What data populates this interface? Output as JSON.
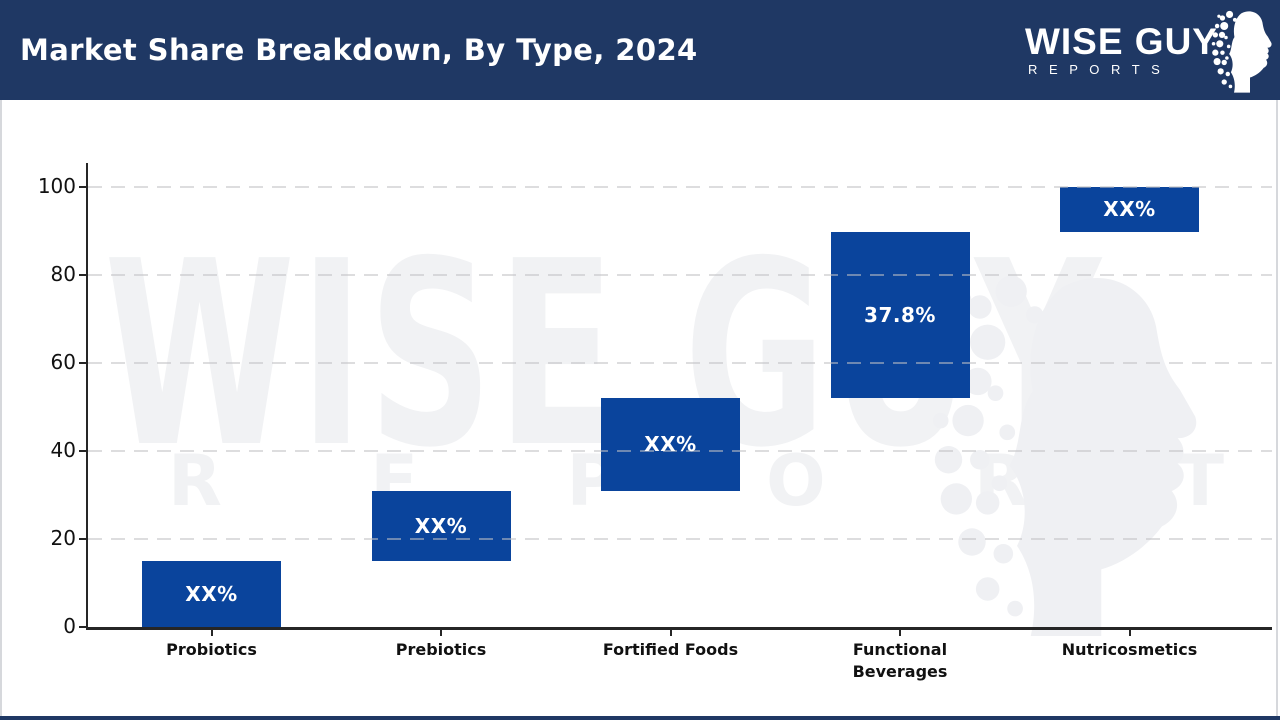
{
  "header": {
    "title": "Market Share Breakdown, By Type, 2024",
    "logo": {
      "line1": "WISE GUY",
      "line2": "R E P O R T S"
    }
  },
  "watermark": {
    "line1": "WISE GUY",
    "line2": "R E P O R T S"
  },
  "chart_data": {
    "type": "bar",
    "variant": "floating-segment-waterfall",
    "title": "Market Share Breakdown, By Type, 2024",
    "categories": [
      "Probiotics",
      "Prebiotics",
      "Fortified Foods",
      "Functional Beverages",
      "Nutricosmetics"
    ],
    "bars": [
      {
        "category": "Probiotics",
        "start": 0,
        "end": 15,
        "label": "XX%"
      },
      {
        "category": "Prebiotics",
        "start": 15,
        "end": 31,
        "label": "XX%"
      },
      {
        "category": "Fortified Foods",
        "start": 31,
        "end": 52,
        "label": "XX%"
      },
      {
        "category": "Functional Beverages",
        "start": 52,
        "end": 89.8,
        "label": "37.8%"
      },
      {
        "category": "Nutricosmetics",
        "start": 89.8,
        "end": 100,
        "label": "XX%"
      }
    ],
    "xlabel": "",
    "ylabel": "",
    "yticks": [
      0,
      20,
      40,
      60,
      80,
      100
    ],
    "ylim": [
      0,
      105
    ],
    "grid": "horizontal-dashed",
    "legend": "none",
    "bar_color": "#0a449c",
    "bar_label_color": "#ffffff"
  },
  "colors": {
    "header_bg": "#1f3864",
    "footer_bg": "#1f3864",
    "title_text": "#ffffff",
    "bar": "#0a449c",
    "axis": "#262626",
    "tick_label": "#111111",
    "grid_line": "#c1c1c4",
    "watermark": "#f1f2f4"
  }
}
